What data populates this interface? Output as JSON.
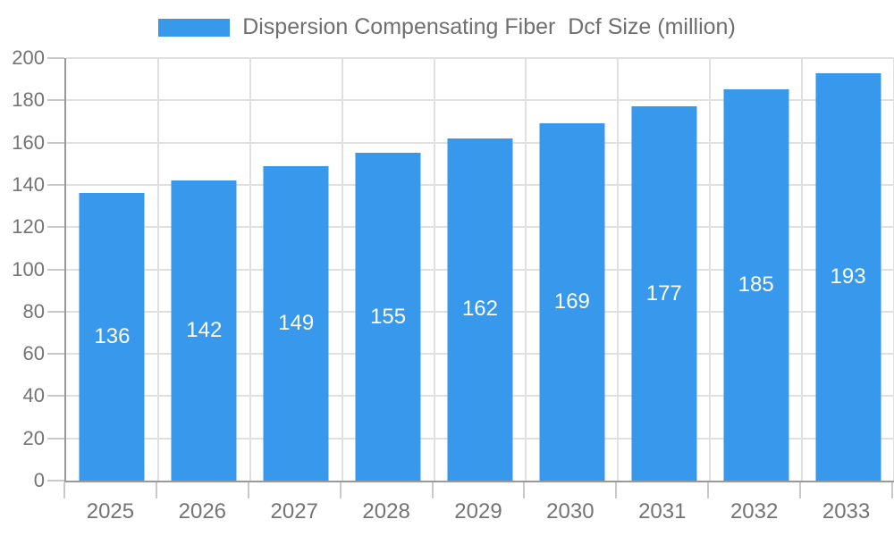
{
  "legend": {
    "label": "Dispersion Compensating Fiber  Dcf Size (million)"
  },
  "chart_data": {
    "type": "bar",
    "title": "Dispersion Compensating Fiber  Dcf Size (million)",
    "categories": [
      "2025",
      "2026",
      "2027",
      "2028",
      "2029",
      "2030",
      "2031",
      "2032",
      "2033"
    ],
    "series": [
      {
        "name": "Dispersion Compensating Fiber  Dcf Size (million)",
        "values": [
          136,
          142,
          149,
          155,
          162,
          169,
          177,
          185,
          193
        ]
      }
    ],
    "xlabel": "",
    "ylabel": "",
    "ylim": [
      0,
      200
    ],
    "yticks": [
      0,
      20,
      40,
      60,
      80,
      100,
      120,
      140,
      160,
      180,
      200
    ],
    "grid": true,
    "legend_position": "top",
    "bar_value_labels": "inside-center"
  },
  "colors": {
    "bar": "#3899EC",
    "bar_label": "#ffffff",
    "axis_line": "#999999",
    "axis_text": "#747474",
    "legend_text": "#6f6f6f",
    "gridline": "#e0e0e0",
    "tick": "#c9c9c9",
    "background": "#ffffff"
  }
}
